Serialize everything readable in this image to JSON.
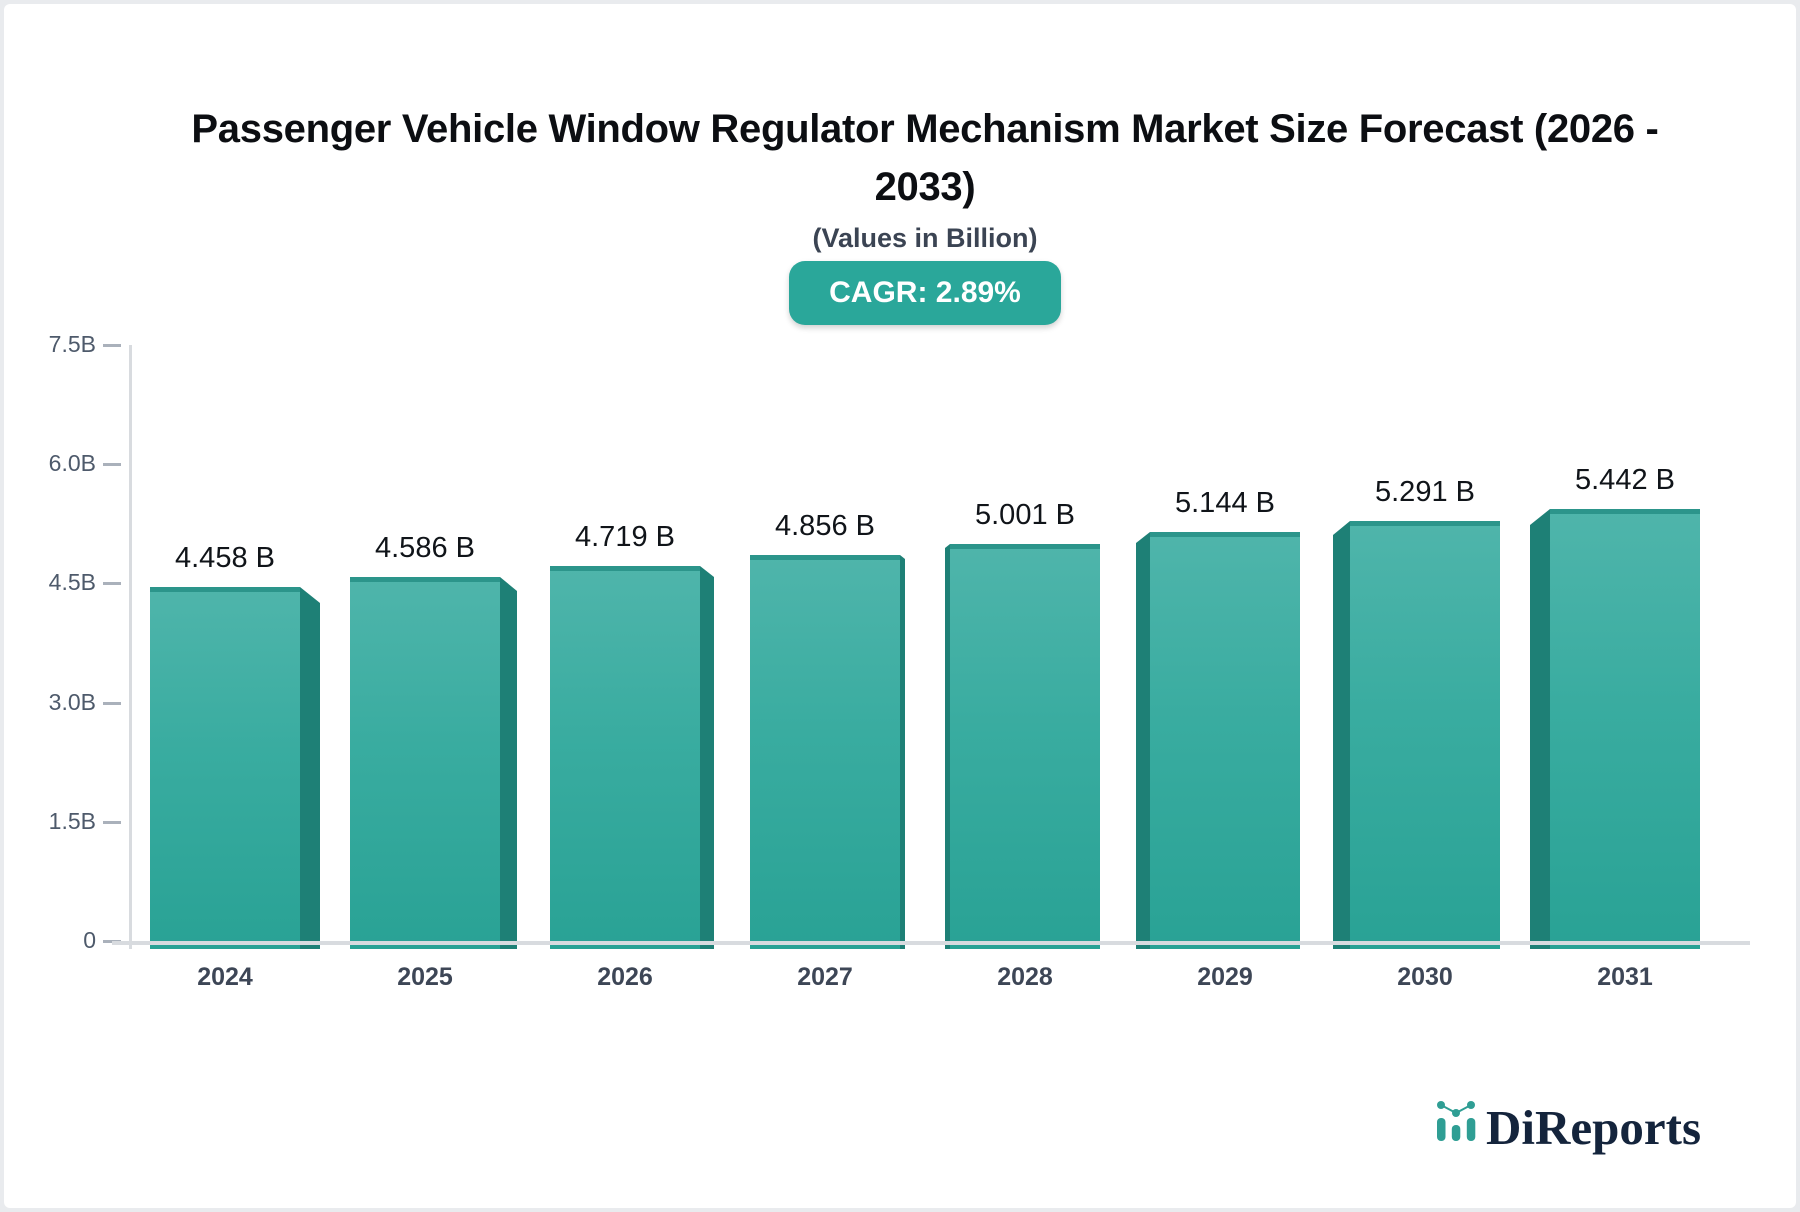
{
  "header": {
    "title": {
      "full": "Passenger Vehicle Window Regulator Mechanism Market Size Forecast (2026 - 2033)",
      "line1": "Passenger Vehicle Window Regulator Mechanism Market Size Forecast (2026 -",
      "line2": "2033)"
    },
    "subtitle": "(Values in Billion)",
    "cagr_badge": "CAGR: 2.89%",
    "badge_color": "#2aa79a"
  },
  "chart_data": {
    "type": "bar",
    "title": "Passenger Vehicle Window Regulator Mechanism Market Size Forecast (2026 - 2033)",
    "subtitle": "(Values in Billion)",
    "cagr_percent": 2.89,
    "unit": "Billion",
    "categories": [
      "2024",
      "2025",
      "2026",
      "2027",
      "2028",
      "2029",
      "2030",
      "2031"
    ],
    "values": [
      4.458,
      4.586,
      4.719,
      4.856,
      5.001,
      5.144,
      5.291,
      5.442
    ],
    "value_labels": [
      "4.458 B",
      "4.586 B",
      "4.719 B",
      "4.856 B",
      "5.001 B",
      "5.144 B",
      "5.291 B",
      "5.442 B"
    ],
    "ylim": [
      0,
      7.5
    ],
    "yticks": {
      "values": [
        7.5,
        6.0,
        4.5,
        3.0,
        1.5,
        0
      ],
      "labels": [
        "7.5B",
        "6.0B",
        "4.5B",
        "3.0B",
        "1.5B",
        "0"
      ]
    },
    "grid": false,
    "legend": "none",
    "bar_style": {
      "effect": "3d-center-perspective",
      "front_top": "#4fb5ab",
      "front_bottom": "#29a295",
      "side": "#1e8076",
      "top_edge": "#2c958b"
    }
  },
  "footer": {
    "logo_text": "DiReports",
    "logo_icon": "mini-bar-chart-icon",
    "logo_text_color": "#14243c",
    "logo_icon_color": "#2f9e94"
  }
}
